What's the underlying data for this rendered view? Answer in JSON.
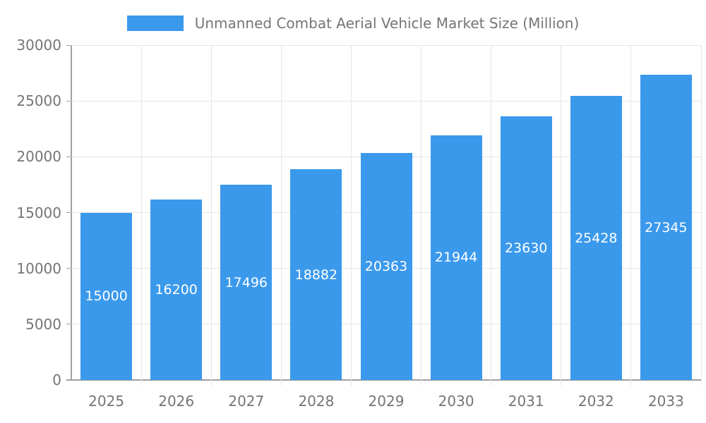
{
  "legend": {
    "label": "Unmanned Combat Aerial Vehicle Market Size (Million)"
  },
  "chart_data": {
    "type": "bar",
    "title": "Unmanned Combat Aerial Vehicle Market Size (Million)",
    "categories": [
      "2025",
      "2026",
      "2027",
      "2028",
      "2029",
      "2030",
      "2031",
      "2032",
      "2033"
    ],
    "values": [
      15000,
      16200,
      17496,
      18882,
      20363,
      21944,
      23630,
      25428,
      27345
    ],
    "series": [
      {
        "name": "Unmanned Combat Aerial Vehicle Market Size (Million)",
        "values": [
          15000,
          16200,
          17496,
          18882,
          20363,
          21944,
          23630,
          25428,
          27345
        ]
      }
    ],
    "xlabel": "",
    "ylabel": "",
    "ylim": [
      0,
      30000
    ],
    "yticks": [
      0,
      5000,
      10000,
      15000,
      20000,
      25000,
      30000
    ],
    "grid": true,
    "legend_position": "top",
    "value_labels": "inside-center",
    "colors": {
      "bar": "#3b99ec",
      "grid": "#e6e6e6",
      "axis": "#a0a0a0",
      "tick_label": "#757575",
      "value_label": "#ffffff"
    }
  }
}
